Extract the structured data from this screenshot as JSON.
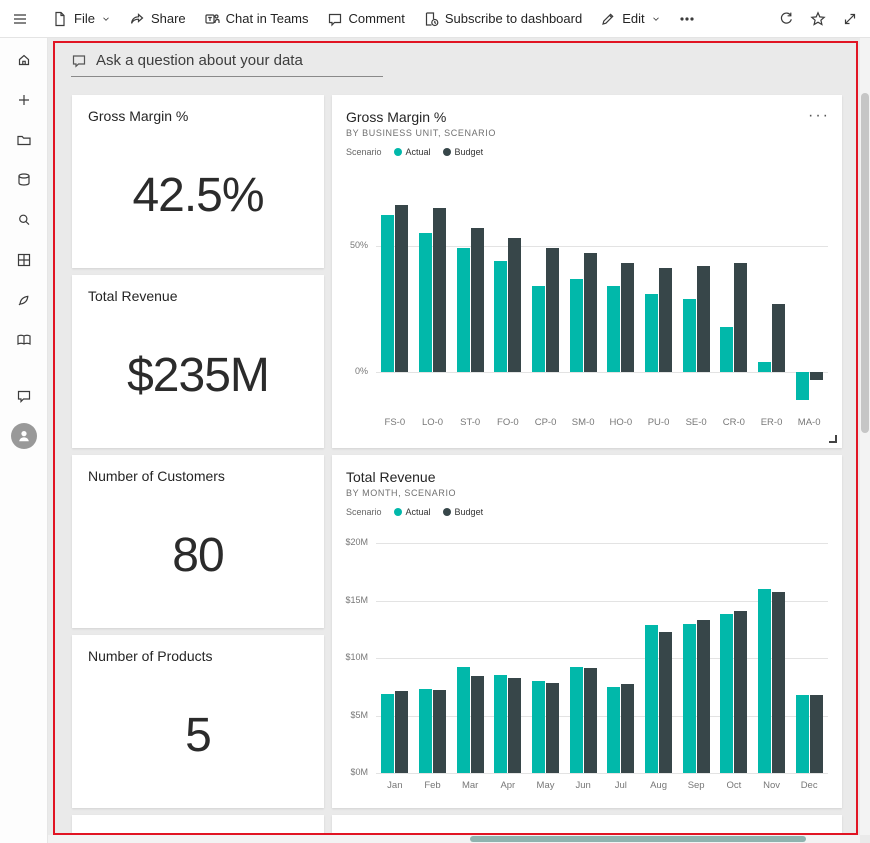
{
  "topbar": {
    "file_label": "File",
    "share_label": "Share",
    "teams_label": "Chat in Teams",
    "comment_label": "Comment",
    "subscribe_label": "Subscribe to dashboard",
    "edit_label": "Edit"
  },
  "qa": {
    "text": "Ask a question about your data"
  },
  "kpis": [
    {
      "title": "Gross Margin %",
      "value": "42.5%"
    },
    {
      "title": "Total Revenue",
      "value": "$235M"
    },
    {
      "title": "Number of Customers",
      "value": "80"
    },
    {
      "title": "Number of Products",
      "value": "5"
    }
  ],
  "colors": {
    "actual": "#01B8AA",
    "budget": "#374649",
    "frame": "#E11423"
  },
  "chart_data": [
    {
      "type": "bar",
      "title": "Gross Margin %",
      "subtitle": "BY BUSINESS UNIT, SCENARIO",
      "legend_label": "Scenario",
      "legend_position": "top-left",
      "grid": true,
      "categories": [
        "FS-0",
        "LO-0",
        "ST-0",
        "FO-0",
        "CP-0",
        "SM-0",
        "HO-0",
        "PU-0",
        "SE-0",
        "CR-0",
        "ER-0",
        "MA-0"
      ],
      "series": [
        {
          "name": "Actual",
          "color": "#01B8AA",
          "values": [
            62,
            55,
            49,
            44,
            34,
            37,
            34,
            31,
            29,
            18,
            4,
            -11
          ]
        },
        {
          "name": "Budget",
          "color": "#374649",
          "values": [
            66,
            65,
            57,
            53,
            49,
            47,
            43,
            41,
            42,
            43,
            27,
            -3
          ]
        }
      ],
      "ylim": [
        -15,
        70
      ],
      "yticks": [
        {
          "v": 50,
          "label": "50%"
        },
        {
          "v": 0,
          "label": "0%"
        }
      ]
    },
    {
      "type": "bar",
      "title": "Total Revenue",
      "subtitle": "BY MONTH, SCENARIO",
      "legend_label": "Scenario",
      "legend_position": "top-left",
      "grid": true,
      "categories": [
        "Jan",
        "Feb",
        "Mar",
        "Apr",
        "May",
        "Jun",
        "Jul",
        "Aug",
        "Sep",
        "Oct",
        "Nov",
        "Dec"
      ],
      "series": [
        {
          "name": "Actual",
          "color": "#01B8AA",
          "values": [
            6.9,
            7.3,
            9.2,
            8.5,
            8.0,
            9.2,
            7.5,
            12.9,
            13.0,
            13.8,
            16.0,
            6.8
          ]
        },
        {
          "name": "Budget",
          "color": "#374649",
          "values": [
            7.1,
            7.2,
            8.4,
            8.3,
            7.8,
            9.1,
            7.7,
            12.3,
            13.3,
            14.1,
            15.7,
            6.8
          ]
        }
      ],
      "ylim": [
        0,
        20
      ],
      "yticks": [
        {
          "v": 20,
          "label": "$20M"
        },
        {
          "v": 15,
          "label": "$15M"
        },
        {
          "v": 10,
          "label": "$10M"
        },
        {
          "v": 5,
          "label": "$5M"
        },
        {
          "v": 0,
          "label": "$0M"
        }
      ]
    }
  ]
}
